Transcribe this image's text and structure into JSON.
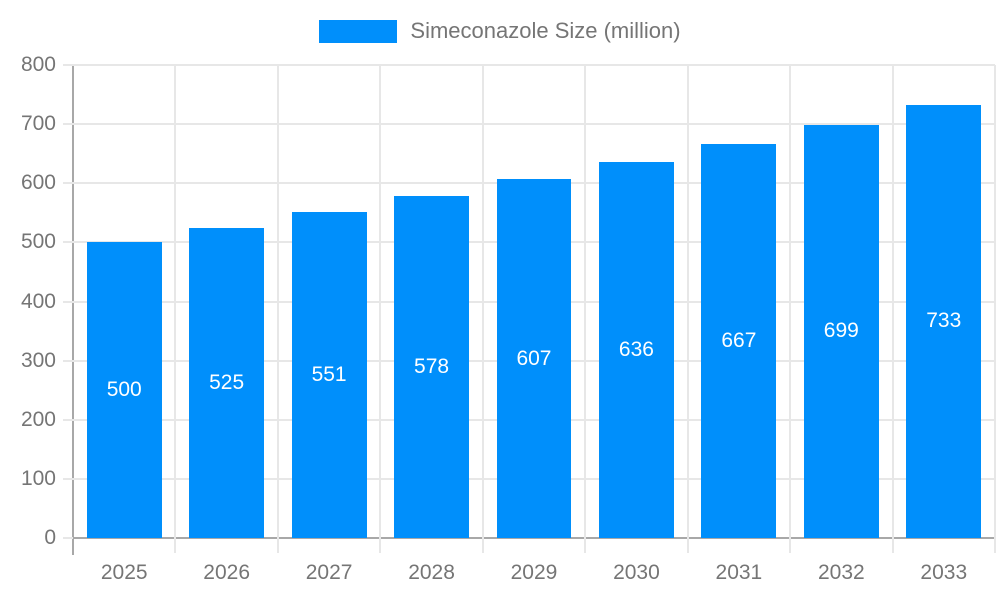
{
  "chart_data": {
    "type": "bar",
    "title": "Simeconazole Size (million)",
    "categories": [
      "2025",
      "2026",
      "2027",
      "2028",
      "2029",
      "2030",
      "2031",
      "2032",
      "2033"
    ],
    "series": [
      {
        "name": "Simeconazole Size (million)",
        "values": [
          500,
          525,
          551,
          578,
          607,
          636,
          667,
          699,
          733
        ]
      }
    ],
    "bar_value_labels": [
      "500",
      "525",
      "551",
      "578",
      "607",
      "636",
      "667",
      "699",
      "733"
    ],
    "xlabel": "",
    "ylabel": "",
    "ylim": [
      0,
      800
    ],
    "yticks": [
      0,
      100,
      200,
      300,
      400,
      500,
      600,
      700,
      800
    ],
    "grid": true,
    "legend_position": "top-center",
    "colors": {
      "bar": "#008ffb",
      "bar_label": "#ffffff",
      "axis_text": "#757575",
      "gridline": "#e7e7e7",
      "axis_line": "#a8a8a8",
      "background": "#ffffff"
    }
  }
}
